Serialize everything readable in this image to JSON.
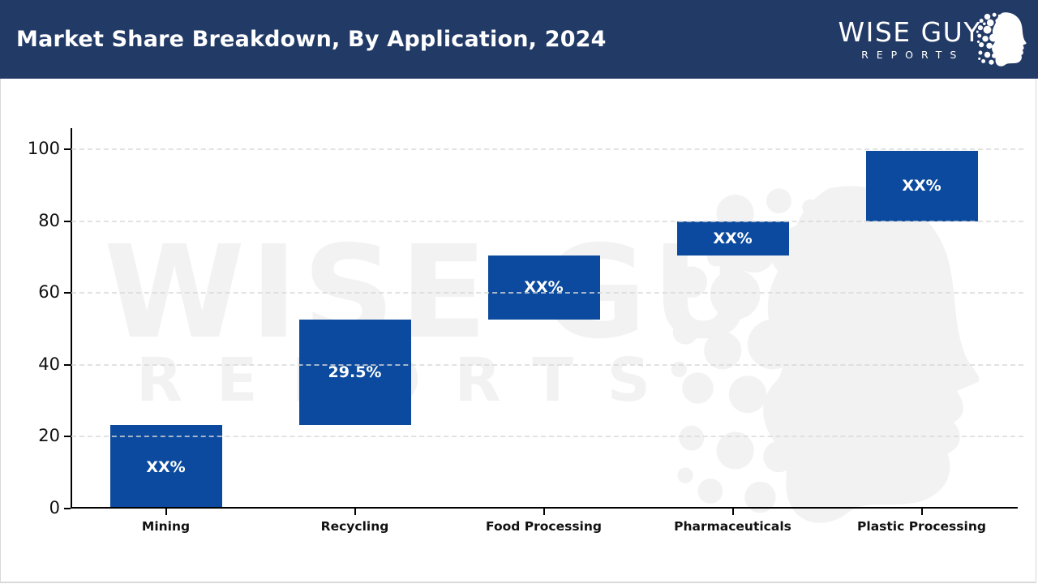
{
  "header": {
    "title": "Market Share Breakdown, By Application, 2024",
    "logo": {
      "line1": "WISE GUY",
      "line2": "REPORTS"
    }
  },
  "watermark": {
    "line1": "WISE GUY",
    "line2": "REPORTS"
  },
  "colors": {
    "header_bg": "#223a66",
    "bar": "#0b4a9e",
    "bar_label": "#ffffff",
    "gridline": "#d8d8d8",
    "axis": "#000000",
    "watermark": "#f2f2f3"
  },
  "chart_data": {
    "type": "bar",
    "subtype": "waterfall",
    "title": "Market Share Breakdown, By Application, 2024",
    "xlabel": "",
    "ylabel": "",
    "categories": [
      "Mining",
      "Recycling",
      "Food Processing",
      "Pharmaceuticals",
      "Plastic Processing"
    ],
    "segments": [
      {
        "category": "Mining",
        "start": 0,
        "end": 23.2,
        "value_label": "XX%"
      },
      {
        "category": "Recycling",
        "start": 23.2,
        "end": 52.7,
        "value_label": "29.5%",
        "value": 29.5
      },
      {
        "category": "Food Processing",
        "start": 52.7,
        "end": 70.4,
        "value_label": "XX%"
      },
      {
        "category": "Pharmaceuticals",
        "start": 70.4,
        "end": 80.0,
        "value_label": "XX%"
      },
      {
        "category": "Plastic Processing",
        "start": 80.0,
        "end": 99.6,
        "value_label": "XX%"
      }
    ],
    "yticks": [
      0,
      20,
      40,
      60,
      80,
      100
    ],
    "ylim": [
      0,
      106
    ],
    "grid": "horizontal-dashed",
    "legend": "none"
  }
}
